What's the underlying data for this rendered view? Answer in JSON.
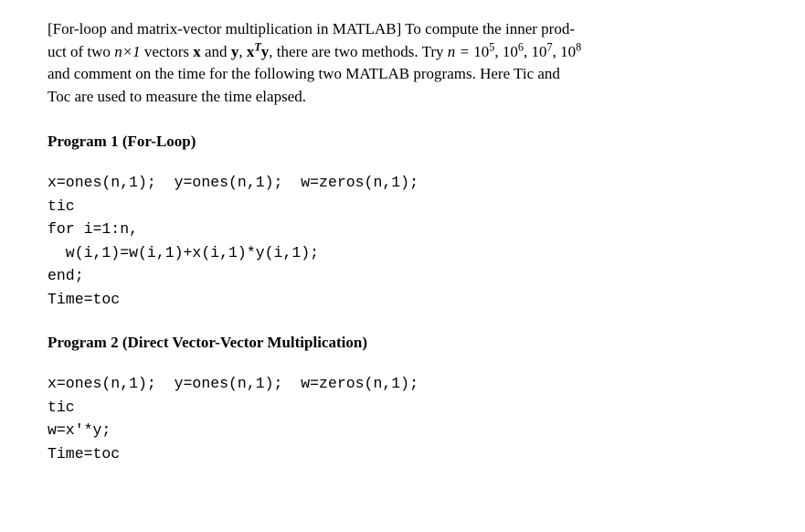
{
  "intro": {
    "line1_pre": "[For-loop and matrix-vector multiplication in MATLAB] To compute the inner prod-",
    "line2_pre": "uct of two ",
    "line2_math1": "n×1",
    "line2_mid1": " vectors ",
    "line2_x": "x",
    "line2_and": " and ",
    "line2_y": "y",
    "line2_comma": ", ",
    "line2_xT": "x",
    "line2_T": "T",
    "line2_yT": "y",
    "line2_mid2": ", there are two methods.  Try ",
    "line2_neq": "n = ",
    "line2_e5": "10",
    "line2_s5": "5",
    "line2_c1": ", 10",
    "line2_s6": "6",
    "line2_c2": ", 10",
    "line2_s7": "7",
    "line2_c3": ", 10",
    "line2_s8": "8",
    "line3": "and comment on the time for the following two MATLAB programs.  Here Tic and",
    "line4": "Toc are used to measure the time elapsed."
  },
  "program1": {
    "header": "Program 1 (For-Loop)",
    "code1": "x=ones(n,1);  y=ones(n,1);  w=zeros(n,1);",
    "code2": "tic",
    "code3": "for i=1:n,",
    "code4": "  w(i,1)=w(i,1)+x(i,1)*y(i,1);",
    "code5": "end;",
    "code6": "Time=toc"
  },
  "program2": {
    "header": "Program 2 (Direct Vector-Vector Multiplication)",
    "code1": "x=ones(n,1);  y=ones(n,1);  w=zeros(n,1);",
    "code2": "tic",
    "code3": "w=x'*y;",
    "code4": "Time=toc"
  },
  "styling": {
    "text_color": "#000000",
    "background_color": "#ffffff",
    "font_size_body": 17,
    "font_size_code": 16.5,
    "font_family_body": "Georgia, Times New Roman, serif",
    "font_family_code": "Courier New, Courier, monospace"
  }
}
